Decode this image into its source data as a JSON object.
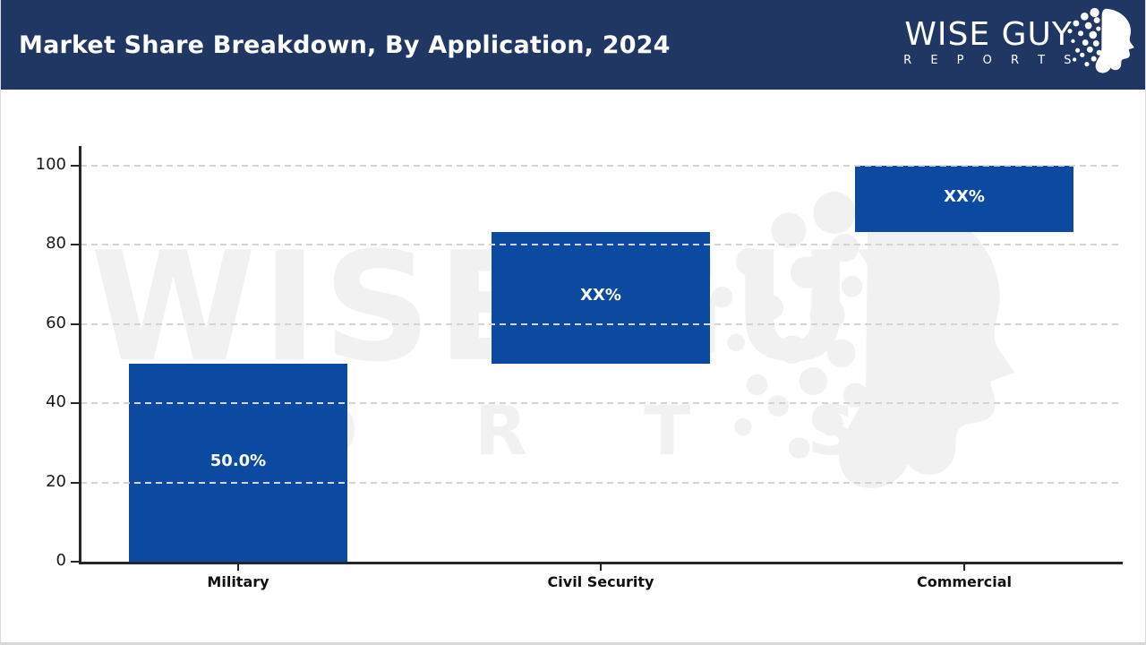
{
  "header": {
    "title": "Market Share Breakdown, By Application, 2024",
    "logo": {
      "line1": "WISE GUY",
      "line2": "R E P O R T S"
    }
  },
  "watermark": {
    "line1": "WISE GUY",
    "line2": "P O R T S"
  },
  "colors": {
    "header_bg": "#213763",
    "bar_blue": "#0c4aa2",
    "gridline": "#d4d4d4",
    "watermark": "#f1f1f1",
    "axis": "#262626",
    "title_text": "#ffffff"
  },
  "chart_data": {
    "type": "bar",
    "subtype": "waterfall",
    "title": "Market Share Breakdown, By Application, 2024",
    "categories": [
      "Military",
      "Civil Security",
      "Commercial"
    ],
    "bars": [
      {
        "category": "Military",
        "start": 0,
        "end": 50,
        "label": "50.0%"
      },
      {
        "category": "Civil Security",
        "start": 50,
        "end": 83.3,
        "label": "XX%"
      },
      {
        "category": "Commercial",
        "start": 83.3,
        "end": 100,
        "label": "XX%"
      }
    ],
    "xlabel": "",
    "ylabel": "",
    "yticks": [
      0,
      20,
      40,
      60,
      80,
      100
    ],
    "ylim": [
      0,
      105
    ],
    "grid": "horizontal dashed, drawn over bars",
    "legend": "none",
    "bar_color": "#0c4aa2",
    "bar_label_color": "#ffffff"
  }
}
